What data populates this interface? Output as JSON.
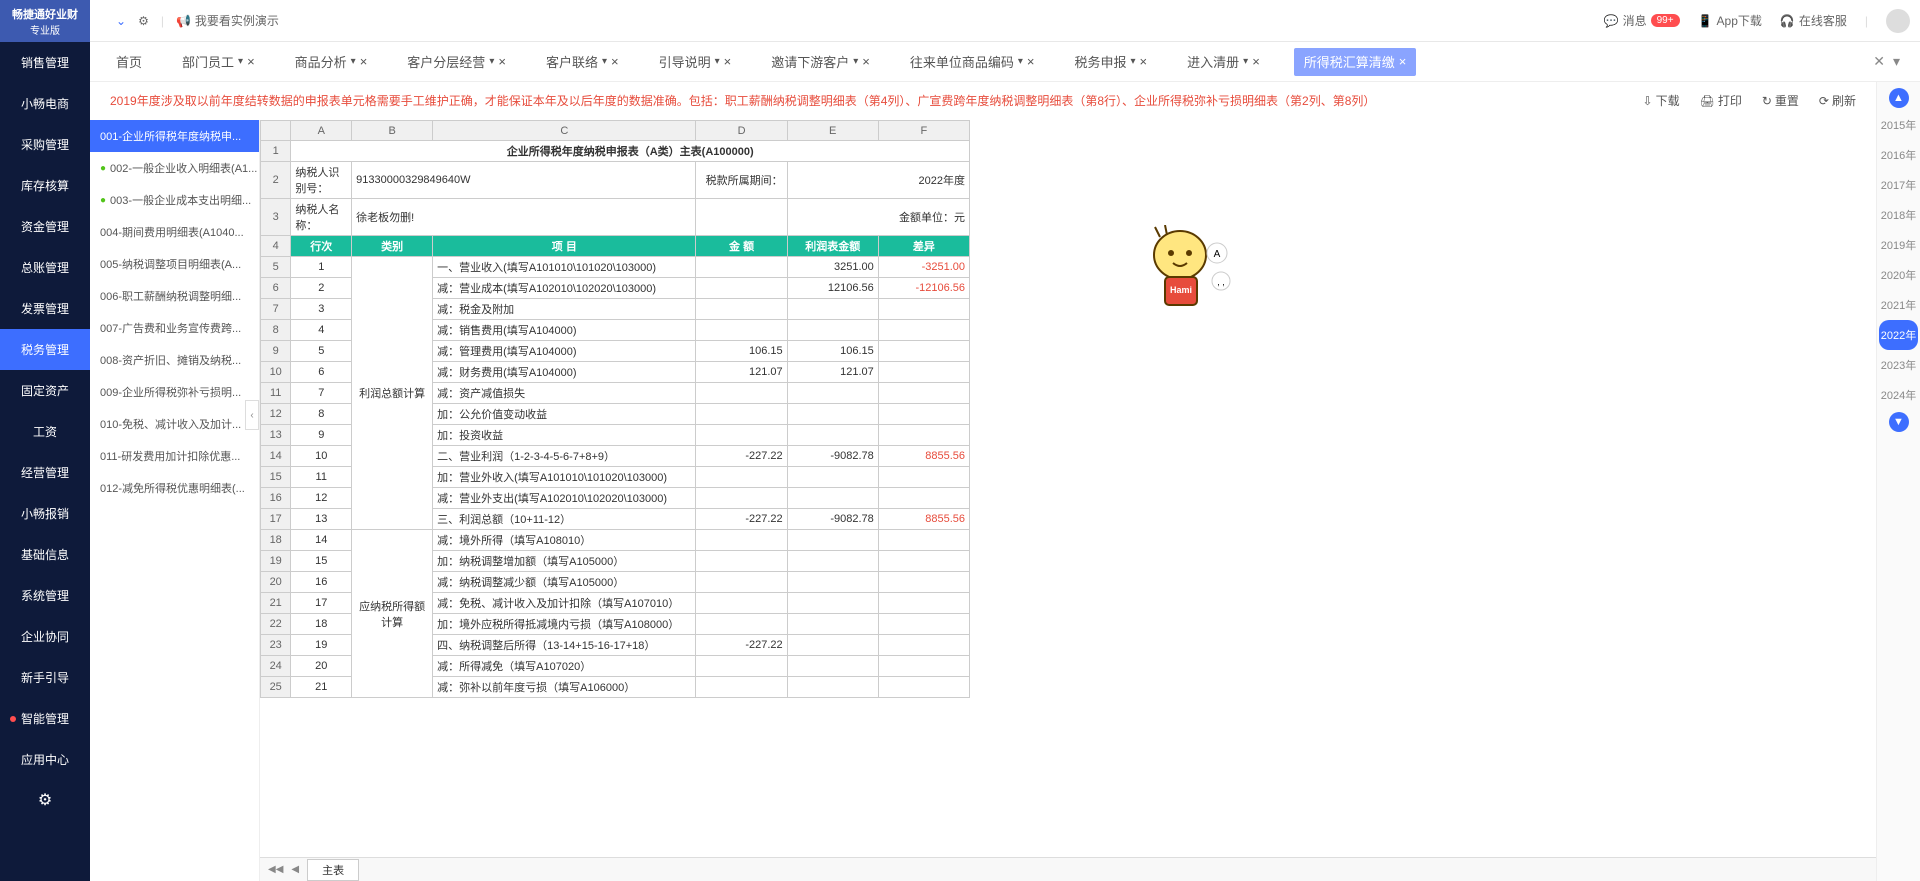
{
  "brand": {
    "name": "畅捷通好业财",
    "edition": "专业版"
  },
  "header": {
    "company": "",
    "settings_icon": "⚙",
    "demo_link": "我要看实例演示",
    "msg_label": "消息",
    "msg_badge": "99+",
    "app_download": "App下载",
    "online_service": "在线客服"
  },
  "sidebar": {
    "items": [
      {
        "label": "销售管理",
        "dot": false
      },
      {
        "label": "小畅电商",
        "dot": false
      },
      {
        "label": "采购管理",
        "dot": false
      },
      {
        "label": "库存核算",
        "dot": false
      },
      {
        "label": "资金管理",
        "dot": false
      },
      {
        "label": "总账管理",
        "dot": false
      },
      {
        "label": "发票管理",
        "dot": false
      },
      {
        "label": "税务管理",
        "dot": false,
        "active": true
      },
      {
        "label": "固定资产",
        "dot": false
      },
      {
        "label": "工资",
        "dot": false
      },
      {
        "label": "经营管理",
        "dot": false
      },
      {
        "label": "小畅报销",
        "dot": false
      },
      {
        "label": "基础信息",
        "dot": false
      },
      {
        "label": "系统管理",
        "dot": false
      },
      {
        "label": "企业协同",
        "dot": false
      },
      {
        "label": "新手引导",
        "dot": false
      },
      {
        "label": "智能管理",
        "dot": true
      },
      {
        "label": "应用中心",
        "dot": false
      }
    ]
  },
  "tabs": {
    "items": [
      {
        "label": "首页",
        "caret": false
      },
      {
        "label": "部门员工",
        "caret": true,
        "close": true
      },
      {
        "label": "商品分析",
        "caret": true,
        "close": true
      },
      {
        "label": "客户分层经营",
        "caret": true,
        "close": true
      },
      {
        "label": "客户联络",
        "caret": true,
        "close": true
      },
      {
        "label": "引导说明",
        "caret": true,
        "close": true
      },
      {
        "label": "邀请下游客户",
        "caret": true,
        "close": true
      },
      {
        "label": "往来单位商品编码",
        "caret": true,
        "close": true
      },
      {
        "label": "税务申报",
        "caret": true,
        "close": true
      },
      {
        "label": "进入清册",
        "caret": true,
        "close": true
      },
      {
        "label": "所得税汇算清缴",
        "close": true,
        "active": true
      }
    ]
  },
  "warning": "2019年度涉及取以前年度结转数据的申报表单元格需要手工维护正确，才能保证本年及以后年度的数据准确。包括：职工薪酬纳税调整明细表（第4列）、广宣费跨年度纳税调整明细表（第8行）、企业所得税弥补亏损明细表（第2列、第8列）",
  "actions": {
    "download": "下载",
    "print": "打印",
    "reset": "重置",
    "refresh": "刷新"
  },
  "form_list": [
    {
      "label": "001-企业所得税年度纳税申...",
      "done": false,
      "active": true
    },
    {
      "label": "002-一般企业收入明细表(A1...",
      "done": true
    },
    {
      "label": "003-一般企业成本支出明细...",
      "done": true
    },
    {
      "label": "004-期间费用明细表(A1040...",
      "done": false
    },
    {
      "label": "005-纳税调整项目明细表(A...",
      "done": false
    },
    {
      "label": "006-职工薪酬纳税调整明细...",
      "done": false
    },
    {
      "label": "007-广告费和业务宣传费跨...",
      "done": false
    },
    {
      "label": "008-资产折旧、摊销及纳税...",
      "done": false
    },
    {
      "label": "009-企业所得税弥补亏损明...",
      "done": false
    },
    {
      "label": "010-免税、减计收入及加计...",
      "done": false
    },
    {
      "label": "011-研发费用加计扣除优惠...",
      "done": false
    },
    {
      "label": "012-减免所得税优惠明细表(...",
      "done": false
    }
  ],
  "sheet": {
    "columns": [
      "",
      "A",
      "B",
      "C",
      "D",
      "E",
      "F"
    ],
    "title": "企业所得税年度纳税申报表（A类）主表(A100000)",
    "taxpayer_id_label": "纳税人识别号：",
    "taxpayer_id": "91330000329849640W",
    "period_label": "税款所属期间：",
    "period": "2022年度",
    "taxpayer_name_label": "纳税人名称：",
    "taxpayer_name": "徐老板勿删!",
    "unit_label": "金额单位：元",
    "hdr": {
      "line": "行次",
      "type": "类别",
      "item": "项    目",
      "amount": "金    额",
      "income": "利润表金额",
      "diff": "差异"
    },
    "category1": "利润总额计算",
    "category2": "应纳税所得额计算",
    "rows": [
      {
        "n": "5",
        "line": "1",
        "item": "一、营业收入(填写A101010\\101020\\103000)",
        "amount": "",
        "income": "3251.00",
        "diff": "-3251.00",
        "neg": true
      },
      {
        "n": "6",
        "line": "2",
        "item": "减：营业成本(填写A102010\\102020\\103000)",
        "amount": "",
        "income": "12106.56",
        "diff": "-12106.56",
        "neg": true
      },
      {
        "n": "7",
        "line": "3",
        "item": "减：税金及附加",
        "amount": "",
        "income": "",
        "diff": ""
      },
      {
        "n": "8",
        "line": "4",
        "item": "减：销售费用(填写A104000)",
        "amount": "",
        "income": "",
        "diff": ""
      },
      {
        "n": "9",
        "line": "5",
        "item": "减：管理费用(填写A104000)",
        "amount": "106.15",
        "income": "106.15",
        "diff": ""
      },
      {
        "n": "10",
        "line": "6",
        "item": "减：财务费用(填写A104000)",
        "amount": "121.07",
        "income": "121.07",
        "diff": ""
      },
      {
        "n": "11",
        "line": "7",
        "item": "减：资产减值损失",
        "amount": "",
        "income": "",
        "diff": ""
      },
      {
        "n": "12",
        "line": "8",
        "item": "加：公允价值变动收益",
        "amount": "",
        "income": "",
        "diff": ""
      },
      {
        "n": "13",
        "line": "9",
        "item": "加：投资收益",
        "amount": "",
        "income": "",
        "diff": ""
      },
      {
        "n": "14",
        "line": "10",
        "item": "二、营业利润（1-2-3-4-5-6-7+8+9）",
        "amount": "-227.22",
        "income": "-9082.78",
        "diff": "8855.56",
        "pos": true
      },
      {
        "n": "15",
        "line": "11",
        "item": "加：营业外收入(填写A101010\\101020\\103000)",
        "amount": "",
        "income": "",
        "diff": ""
      },
      {
        "n": "16",
        "line": "12",
        "item": "减：营业外支出(填写A102010\\102020\\103000)",
        "amount": "",
        "income": "",
        "diff": ""
      },
      {
        "n": "17",
        "line": "13",
        "item": "三、利润总额（10+11-12）",
        "amount": "-227.22",
        "income": "-9082.78",
        "diff": "8855.56",
        "pos": true
      },
      {
        "n": "18",
        "line": "14",
        "item": "减：境外所得（填写A108010）",
        "amount": "",
        "income": "",
        "diff": ""
      },
      {
        "n": "19",
        "line": "15",
        "item": "加：纳税调整增加额（填写A105000）",
        "amount": "",
        "income": "",
        "diff": ""
      },
      {
        "n": "20",
        "line": "16",
        "item": "减：纳税调整减少额（填写A105000）",
        "amount": "",
        "income": "",
        "diff": ""
      },
      {
        "n": "21",
        "line": "17",
        "item": "减：免税、减计收入及加计扣除（填写A107010）",
        "amount": "",
        "income": "",
        "diff": ""
      },
      {
        "n": "22",
        "line": "18",
        "item": "加：境外应税所得抵减境内亏损（填写A108000）",
        "amount": "",
        "income": "",
        "diff": ""
      },
      {
        "n": "23",
        "line": "19",
        "item": "四、纳税调整后所得（13-14+15-16-17+18）",
        "amount": "-227.22",
        "income": "",
        "diff": ""
      },
      {
        "n": "24",
        "line": "20",
        "item": "减：所得减免（填写A107020）",
        "amount": "",
        "income": "",
        "diff": ""
      },
      {
        "n": "25",
        "line": "21",
        "item": "减：弥补以前年度亏损（填写A106000）",
        "amount": "",
        "income": "",
        "diff": ""
      }
    ],
    "tab_label": "主表"
  },
  "years": [
    "2015年",
    "2016年",
    "2017年",
    "2018年",
    "2019年",
    "2020年",
    "2021年",
    "2022年",
    "2023年",
    "2024年"
  ],
  "active_year": "2022年"
}
